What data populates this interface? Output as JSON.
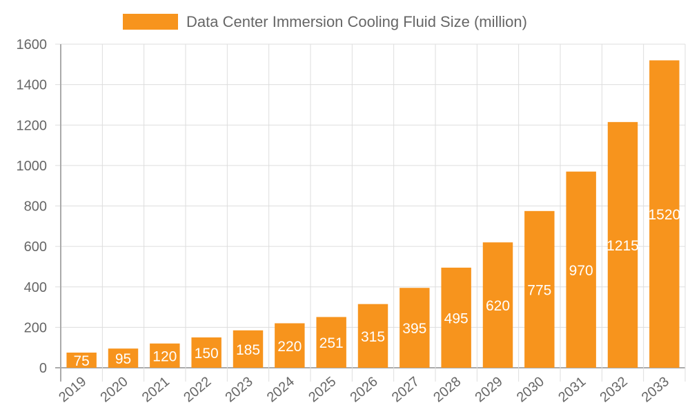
{
  "chart_data": {
    "type": "bar",
    "title": "",
    "xlabel": "",
    "ylabel": "",
    "categories": [
      "2019",
      "2020",
      "2021",
      "2022",
      "2023",
      "2024",
      "2025",
      "2026",
      "2027",
      "2028",
      "2029",
      "2030",
      "2031",
      "2032",
      "2033"
    ],
    "series": [
      {
        "name": "Data Center Immersion Cooling Fluid Size (million)",
        "values": [
          75,
          95,
          120,
          150,
          185,
          220,
          251,
          315,
          395,
          495,
          620,
          775,
          970,
          1215,
          1520
        ]
      }
    ],
    "ylim": [
      0,
      1600
    ],
    "yticks": [
      0,
      200,
      400,
      600,
      800,
      1000,
      1200,
      1400,
      1600
    ],
    "grid": true,
    "legend_position": "top",
    "data_labels": true,
    "colors": {
      "bar": "#f7941d",
      "grid": "#dddddd",
      "axis": "#aaaaaa",
      "text": "#666666",
      "label": "#ffffff"
    }
  }
}
